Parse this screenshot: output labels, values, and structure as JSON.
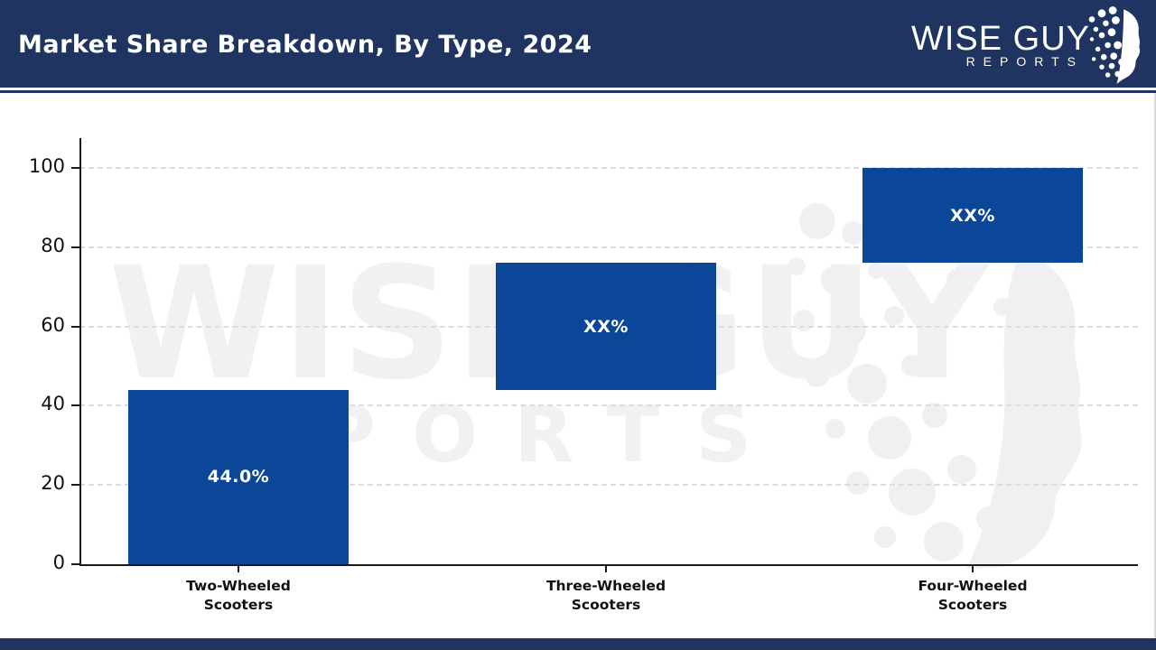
{
  "header": {
    "title": "Market Share Breakdown, By Type, 2024"
  },
  "logo": {
    "wordmark": "WISE GUY",
    "subtext": "REPORTS"
  },
  "watermark": {
    "line1": "WISE GUY",
    "line2": "REPORTS"
  },
  "colors": {
    "header_navy": "#1f3460",
    "bar_blue": "#0b4699",
    "gridline_gray": "#dcdcdc",
    "watermark_gray": "#f1f1f4",
    "bar_label_white": "#ffffff",
    "axis_black": "#1a1a1a"
  },
  "chart_data": {
    "type": "bar",
    "subtype": "floating-segment breakdown (stacked waterfall, segments sum to 100%)",
    "title": "Market Share Breakdown, By Type, 2024",
    "categories": [
      "Two-Wheeled Scooters",
      "Three-Wheeled Scooters",
      "Four-Wheeled Scooters"
    ],
    "category_lines": [
      [
        "Two-Wheeled",
        "Scooters"
      ],
      [
        "Three-Wheeled",
        "Scooters"
      ],
      [
        "Four-Wheeled",
        "Scooters"
      ]
    ],
    "segments": [
      {
        "category": "Two-Wheeled Scooters",
        "start": 0,
        "end": 44,
        "value": 44.0,
        "label": "44.0%"
      },
      {
        "category": "Three-Wheeled Scooters",
        "start": 44,
        "end": 76,
        "value": 32,
        "label": "XX%"
      },
      {
        "category": "Four-Wheeled Scooters",
        "start": 76,
        "end": 100,
        "value": 24,
        "label": "XX%"
      }
    ],
    "xlabel": "",
    "ylabel": "",
    "yticks": [
      0,
      20,
      40,
      60,
      80,
      100
    ],
    "ylim": [
      0,
      107
    ],
    "grid": "horizontal dashed, behind-text above-watermark",
    "legend": "none",
    "bar_color": "#0b4699"
  }
}
